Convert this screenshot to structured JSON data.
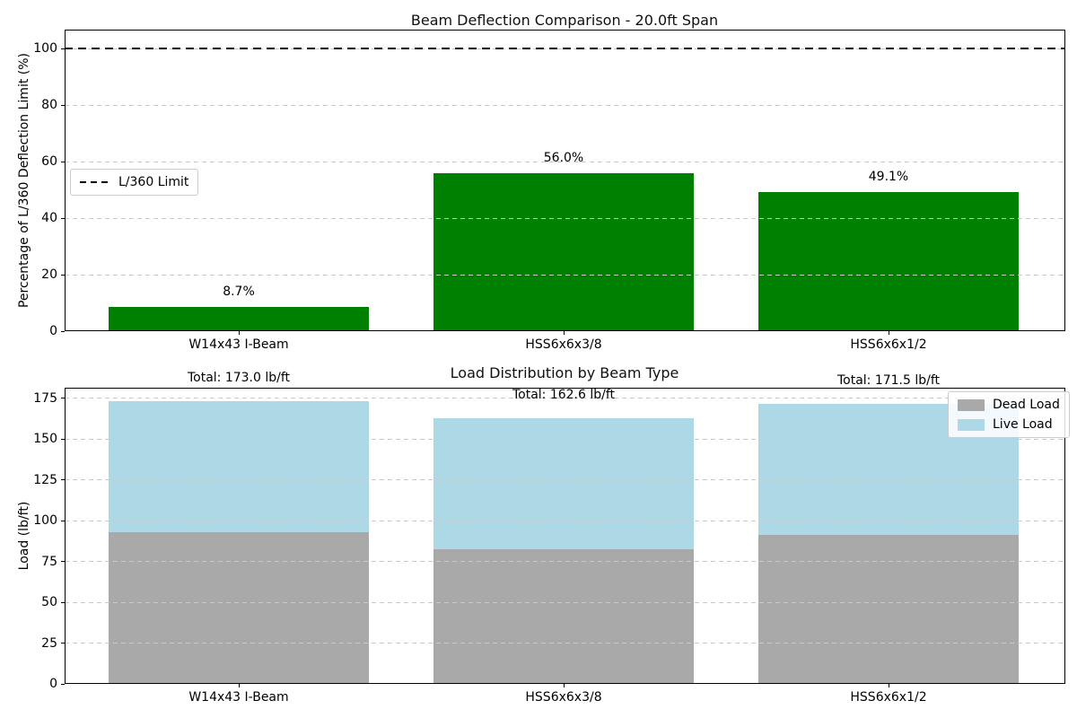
{
  "chart_data": [
    {
      "id": "deflection",
      "type": "bar",
      "title": "Beam Deflection Comparison - 20.0ft Span",
      "ylabel": "Percentage of L/360 Deflection Limit (%)",
      "categories": [
        "W14x43 I-Beam",
        "HSS6x6x3/8",
        "HSS6x6x1/2"
      ],
      "values": [
        8.7,
        56.0,
        49.1
      ],
      "bar_labels": [
        "8.7%",
        "56.0%",
        "49.1%"
      ],
      "bar_color": "#008000",
      "ylim": [
        0,
        106.7
      ],
      "yticks": [
        0,
        20,
        40,
        60,
        80,
        100
      ],
      "grid": "dashed horizontal gridlines",
      "reference_line": {
        "value": 100,
        "style": "dashed",
        "color": "#000000"
      },
      "legend": {
        "position": "center-left",
        "entries": [
          {
            "label": "L/360 Limit",
            "marker": "dashed-line",
            "color": "#000000"
          }
        ]
      }
    },
    {
      "id": "load-distribution",
      "type": "stacked-bar",
      "title": "Load Distribution by Beam Type",
      "ylabel": "Load (lb/ft)",
      "categories": [
        "W14x43 I-Beam",
        "HSS6x6x3/8",
        "HSS6x6x1/2"
      ],
      "series": [
        {
          "name": "Dead Load",
          "color": "#a9a9a9",
          "values": [
            93.0,
            82.6,
            91.5
          ]
        },
        {
          "name": "Live Load",
          "color": "#add8e6",
          "values": [
            80.0,
            80.0,
            80.0
          ]
        }
      ],
      "totals": [
        173.0,
        162.6,
        171.5
      ],
      "total_labels": [
        "Total: 173.0 lb/ft",
        "Total: 162.6 lb/ft",
        "Total: 171.5 lb/ft"
      ],
      "ylim": [
        0,
        181.5
      ],
      "yticks": [
        0,
        25,
        50,
        75,
        100,
        125,
        150,
        175
      ],
      "grid": "dashed horizontal gridlines",
      "legend": {
        "position": "top-right",
        "entries": [
          {
            "label": "Dead Load",
            "color": "#a9a9a9"
          },
          {
            "label": "Live Load",
            "color": "#add8e6"
          }
        ]
      }
    }
  ]
}
